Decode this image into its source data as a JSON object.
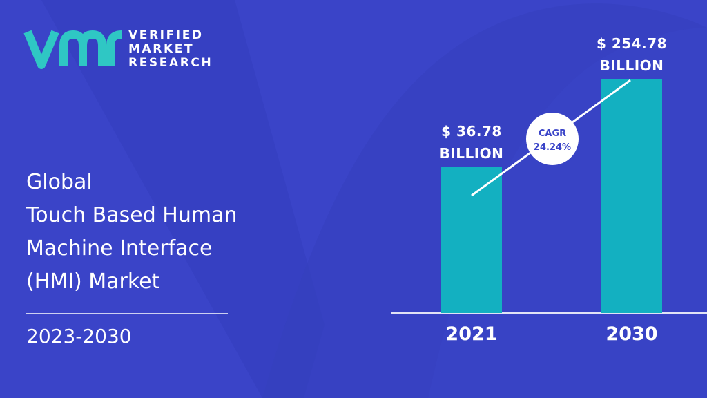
{
  "brand": {
    "line1": "VERIFIED",
    "line2": "MARKET",
    "line3": "RESEARCH",
    "logo_color": "#2fc7c4"
  },
  "title_lines": [
    "Global",
    "Touch Based Human",
    "Machine Interface",
    "(HMI) Market"
  ],
  "period": "2023-2030",
  "colors": {
    "background": "#3a44c8",
    "bar": "#13b0c1",
    "text": "#ffffff",
    "cagr_text": "#3a44c8"
  },
  "chart_data": {
    "type": "bar",
    "categories": [
      "2021",
      "2030"
    ],
    "values": [
      36.78,
      254.78
    ],
    "value_labels": [
      [
        "$ 36.78",
        "BILLION"
      ],
      [
        "$ 254.78",
        "BILLION"
      ]
    ],
    "annotation": {
      "line1": "CAGR",
      "line2": "24.24%"
    }
  }
}
